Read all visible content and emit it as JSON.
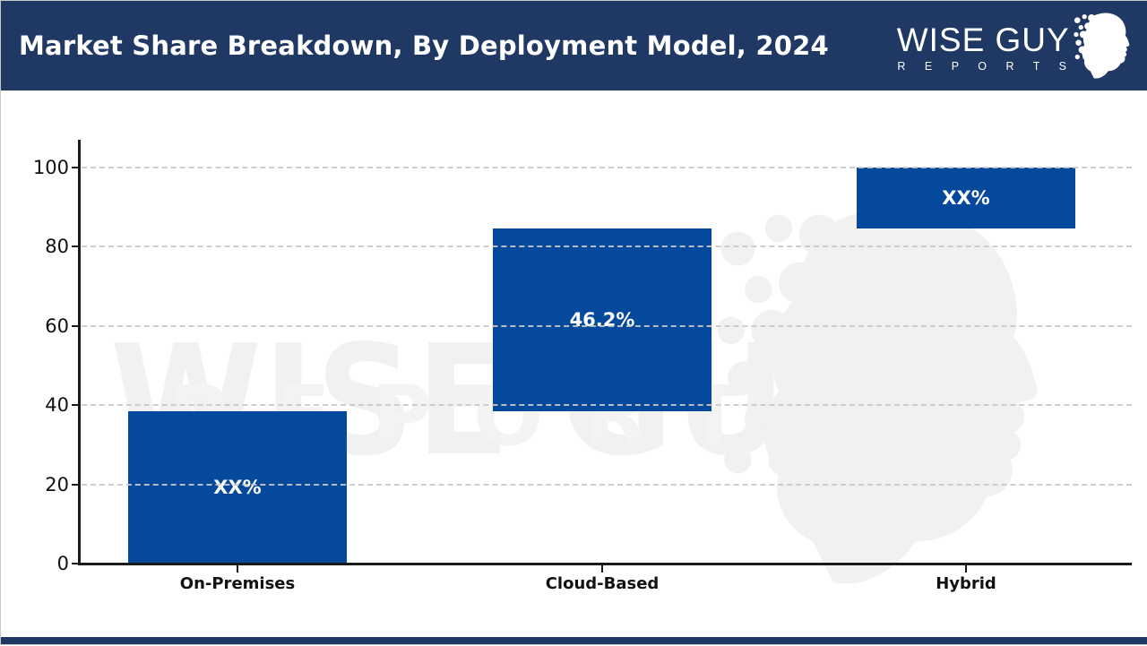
{
  "header": {
    "title": "Market Share Breakdown, By Deployment Model, 2024",
    "logo": {
      "name": "WISE GUY",
      "subname": "REPORTS",
      "subname_spaced": "R E P O R T S"
    }
  },
  "watermark": {
    "line1": "WISE GUY",
    "line2": "REPORTS"
  },
  "colors": {
    "header_bg": "#203864",
    "footer_bg": "#203864",
    "bar": "#05499c",
    "grid": "#c9c9c9",
    "axis": "#1a1a1a",
    "watermark": "#f1f1f1",
    "value_label": "#ffffff",
    "tick_label": "#111111"
  },
  "chart_data": {
    "type": "bar",
    "subtype": "floating-waterfall",
    "title": "Market Share Breakdown, By Deployment Model, 2024",
    "categories": [
      "On-Premises",
      "Cloud-Based",
      "Hybrid"
    ],
    "segments": [
      {
        "category": "On-Premises",
        "start": 0,
        "end": 38.5,
        "label": "XX%"
      },
      {
        "category": "Cloud-Based",
        "start": 38.5,
        "end": 84.7,
        "label": "46.2%"
      },
      {
        "category": "Hybrid",
        "start": 84.7,
        "end": 100,
        "label": "XX%"
      }
    ],
    "ylim": [
      0,
      100
    ],
    "yticks": [
      0,
      20,
      40,
      60,
      80,
      100
    ],
    "xlabel": "",
    "ylabel": "",
    "grid": "horizontal dashed",
    "legend": "none",
    "bar_color": "#05499c",
    "value_label_color": "#ffffff"
  }
}
